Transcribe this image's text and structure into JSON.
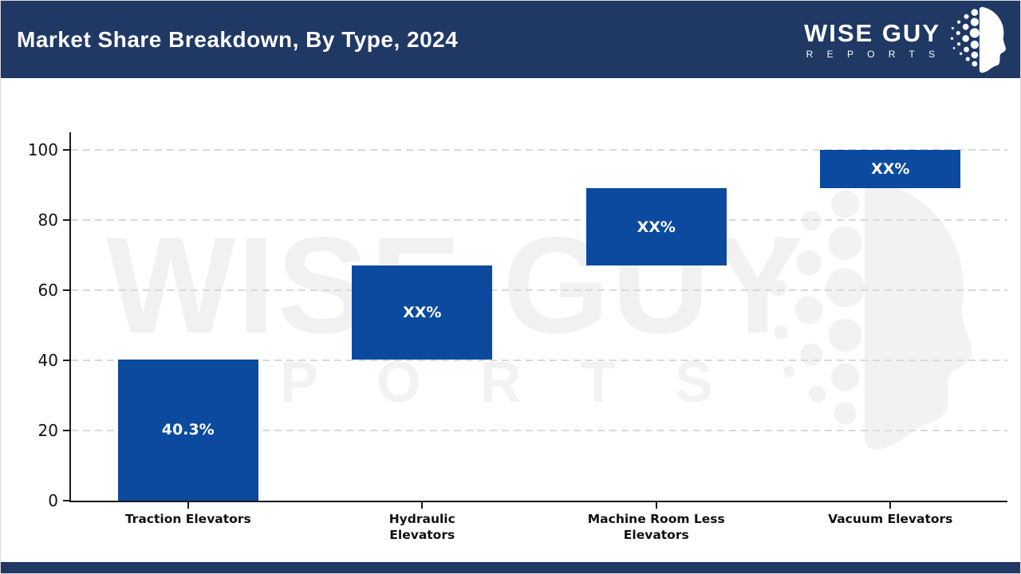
{
  "header": {
    "title": "Market Share Breakdown, By Type, 2024",
    "logo": {
      "name": "WISE GUY",
      "tagline": "R E P O R T S"
    }
  },
  "watermark": {
    "line1": "WISE GUY",
    "line2": "P O R T S"
  },
  "chart_data": {
    "type": "waterfall",
    "title": "Market Share Breakdown, By Type, 2024",
    "categories": [
      "Traction Elevators",
      "Hydraulic Elevators",
      "Machine Room Less Elevators",
      "Vacuum Elevators"
    ],
    "segments": [
      {
        "category": "Traction Elevators",
        "label_lines": [
          "Traction Elevators"
        ],
        "start": 0,
        "end": 40.3,
        "value_label": "40.3%"
      },
      {
        "category": "Hydraulic Elevators",
        "label_lines": [
          "Hydraulic",
          "Elevators"
        ],
        "start": 40.3,
        "end": 67,
        "value_label": "XX%"
      },
      {
        "category": "Machine Room Less Elevators",
        "label_lines": [
          "Machine Room Less",
          "Elevators"
        ],
        "start": 67,
        "end": 89,
        "value_label": "XX%"
      },
      {
        "category": "Vacuum Elevators",
        "label_lines": [
          "Vacuum Elevators"
        ],
        "start": 89,
        "end": 100,
        "value_label": "XX%"
      }
    ],
    "yticks": [
      0,
      20,
      40,
      60,
      80,
      100
    ],
    "ylim": [
      0,
      105
    ],
    "grid": "horizontal-dashed",
    "legend": "none",
    "xlabel": "",
    "ylabel": "",
    "bar_color": "#0b4a9e",
    "value_label_color": "#ffffff"
  },
  "colors": {
    "header_bg": "#1f3864",
    "footer_bg": "#1f3864",
    "bar": "#0b4a9e",
    "grid": "#d9d9d9",
    "axis": "#1a1a1a",
    "watermark": "#f1f1f1"
  }
}
